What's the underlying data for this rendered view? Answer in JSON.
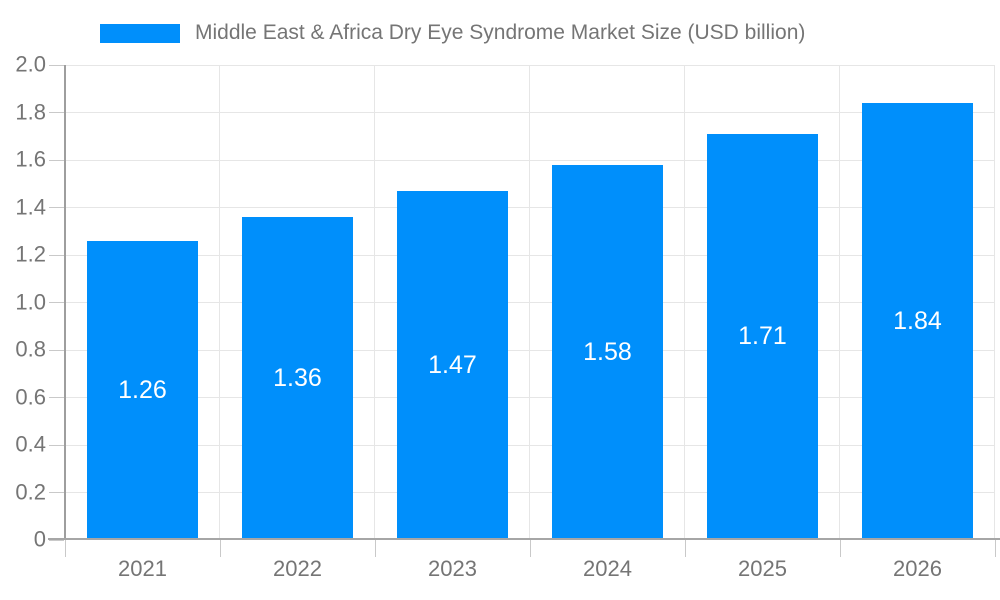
{
  "legend": {
    "series_label": "Middle East & Africa Dry Eye Syndrome Market Size (USD billion)"
  },
  "chart_data": {
    "type": "bar",
    "title": "Middle East & Africa Dry Eye Syndrome Market Size (USD billion)",
    "categories": [
      "2021",
      "2022",
      "2023",
      "2024",
      "2025",
      "2026"
    ],
    "values": [
      1.26,
      1.36,
      1.47,
      1.58,
      1.71,
      1.84
    ],
    "value_labels": [
      "1.26",
      "1.36",
      "1.47",
      "1.58",
      "1.71",
      "1.84"
    ],
    "xlabel": "",
    "ylabel": "",
    "ylim": [
      0,
      2.0
    ],
    "ytick_step": 0.2,
    "ytick_labels": [
      "0",
      "0.2",
      "0.4",
      "0.6",
      "0.8",
      "1.0",
      "1.2",
      "1.4",
      "1.6",
      "1.8",
      "2.0"
    ],
    "grid": true,
    "legend_position": "top",
    "colors": {
      "bar": "#008FFB",
      "bar_label_text": "#ffffff",
      "axis_text": "#757575",
      "gridline": "#e6e6e6",
      "tick": "#c9c9c9",
      "axis_line_x": "#a6a6a6",
      "axis_line_y": "#9e9e9e",
      "background": "#ffffff"
    }
  }
}
